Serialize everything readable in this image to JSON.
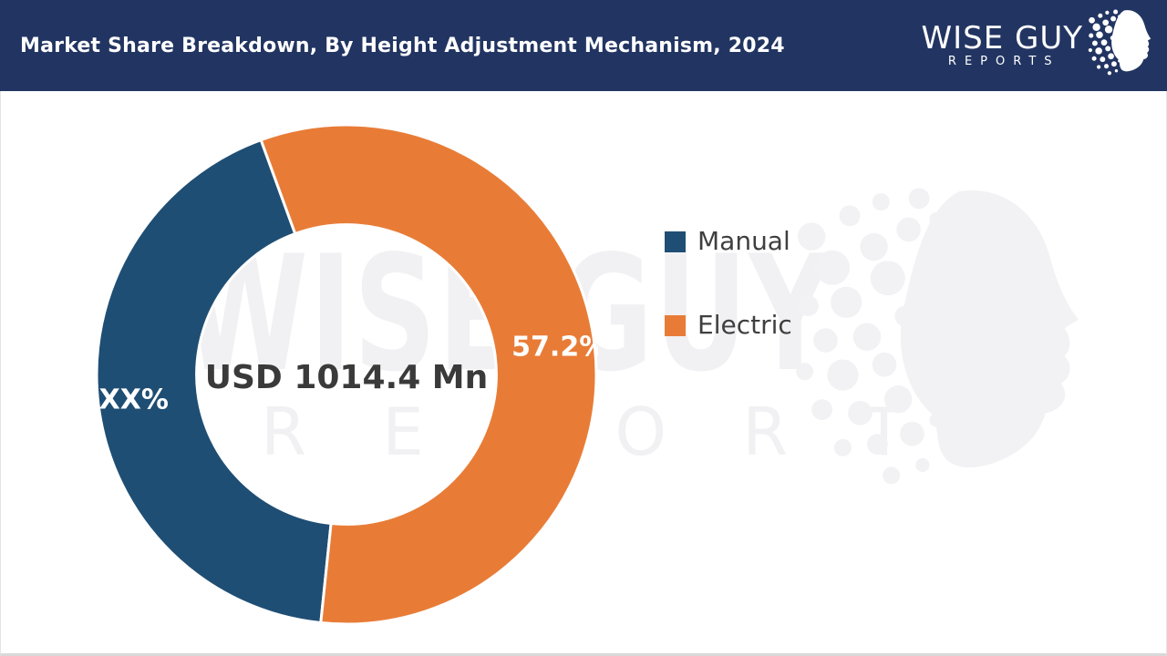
{
  "header": {
    "title": "Market Share Breakdown, By Height Adjustment Mechanism, 2024",
    "logo": {
      "line1": "WISE GUY",
      "line2": "REPORTS"
    }
  },
  "watermark": {
    "line1": "WISE GUY",
    "line2": "REPORTS"
  },
  "chart_data": {
    "type": "pie",
    "subtype": "donut",
    "title": "Market Share Breakdown, By Height Adjustment Mechanism, 2024",
    "year": "2024",
    "center_label": "USD 1014.4 Mn",
    "unit": "percent",
    "start_angle_deg": 185.9,
    "direction": "clockwise",
    "inner_radius_ratio": 0.6,
    "legend_position": "right",
    "slices": [
      {
        "name": "Manual",
        "value": 42.8,
        "display": "XX%",
        "color": "#1f4e74"
      },
      {
        "name": "Electric",
        "value": 57.2,
        "display": "57.2%",
        "color": "#e87c37"
      }
    ]
  },
  "colors": {
    "header_bg": "#223562",
    "manual": "#1f4e74",
    "electric": "#e87c37",
    "text_dark": "#3a3a3a",
    "watermark": "#f1f1f3",
    "bottom_border": "#d9d9d9"
  }
}
